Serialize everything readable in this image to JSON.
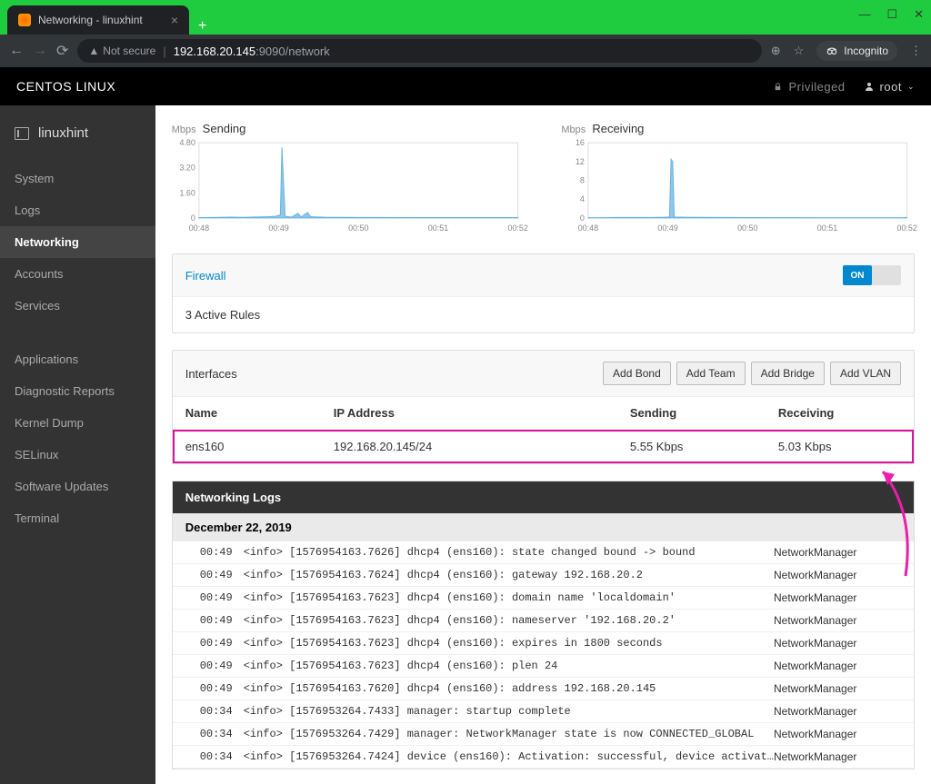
{
  "browser": {
    "tab_title": "Networking - linuxhint",
    "url_warning": "Not secure",
    "url_host": "192.168.20.145",
    "url_path": ":9090/network",
    "incognito_label": "Incognito"
  },
  "header": {
    "brand": "CENTOS LINUX",
    "privileged": "Privileged",
    "user": "root"
  },
  "sidebar": {
    "hostname": "linuxhint",
    "items_a": [
      "System",
      "Logs",
      "Networking",
      "Accounts",
      "Services"
    ],
    "items_b": [
      "Applications",
      "Diagnostic Reports",
      "Kernel Dump",
      "SELinux",
      "Software Updates",
      "Terminal"
    ],
    "active": "Networking"
  },
  "charts": {
    "sending": {
      "unit": "Mbps",
      "title": "Sending",
      "ymax": 4.8,
      "ytick_step": 1.6,
      "yticks": [
        "4.80",
        "3.20",
        "1.60",
        "0"
      ],
      "xticks": [
        "00:48",
        "00:49",
        "00:50",
        "00:51",
        "00:52"
      ],
      "line_color": "#66b3e2",
      "fill_color": "#8fc6ea",
      "bg": "#ffffff",
      "grid": "#dddddd",
      "points": [
        {
          "t": 0.0,
          "v": 0.02
        },
        {
          "t": 0.05,
          "v": 0.03
        },
        {
          "t": 0.1,
          "v": 0.05
        },
        {
          "t": 0.14,
          "v": 0.04
        },
        {
          "t": 0.18,
          "v": 0.06
        },
        {
          "t": 0.22,
          "v": 0.08
        },
        {
          "t": 0.24,
          "v": 0.1
        },
        {
          "t": 0.255,
          "v": 0.2
        },
        {
          "t": 0.26,
          "v": 4.5
        },
        {
          "t": 0.27,
          "v": 0.1
        },
        {
          "t": 0.29,
          "v": 0.05
        },
        {
          "t": 0.31,
          "v": 0.3
        },
        {
          "t": 0.32,
          "v": 0.06
        },
        {
          "t": 0.34,
          "v": 0.35
        },
        {
          "t": 0.35,
          "v": 0.08
        },
        {
          "t": 0.4,
          "v": 0.04
        },
        {
          "t": 0.5,
          "v": 0.03
        },
        {
          "t": 0.7,
          "v": 0.02
        },
        {
          "t": 1.0,
          "v": 0.02
        }
      ]
    },
    "receiving": {
      "unit": "Mbps",
      "title": "Receiving",
      "ymax": 16,
      "ytick_step": 4,
      "yticks": [
        "16",
        "12",
        "8",
        "4",
        "0"
      ],
      "xticks": [
        "00:48",
        "00:49",
        "00:50",
        "00:51",
        "00:52"
      ],
      "line_color": "#66b3e2",
      "fill_color": "#8fc6ea",
      "bg": "#ffffff",
      "grid": "#dddddd",
      "points": [
        {
          "t": 0.0,
          "v": 0.05
        },
        {
          "t": 0.05,
          "v": 0.05
        },
        {
          "t": 0.1,
          "v": 0.1
        },
        {
          "t": 0.15,
          "v": 0.1
        },
        {
          "t": 0.2,
          "v": 0.1
        },
        {
          "t": 0.24,
          "v": 0.15
        },
        {
          "t": 0.255,
          "v": 0.2
        },
        {
          "t": 0.26,
          "v": 12.5
        },
        {
          "t": 0.265,
          "v": 12.0
        },
        {
          "t": 0.27,
          "v": 0.2
        },
        {
          "t": 0.3,
          "v": 0.15
        },
        {
          "t": 0.35,
          "v": 0.12
        },
        {
          "t": 0.5,
          "v": 0.08
        },
        {
          "t": 0.7,
          "v": 0.05
        },
        {
          "t": 1.0,
          "v": 0.05
        }
      ]
    }
  },
  "firewall": {
    "title": "Firewall",
    "toggle": "ON",
    "rules_text": "3 Active Rules"
  },
  "interfaces": {
    "title": "Interfaces",
    "buttons": [
      "Add Bond",
      "Add Team",
      "Add Bridge",
      "Add VLAN"
    ],
    "columns": [
      "Name",
      "IP Address",
      "Sending",
      "Receiving"
    ],
    "rows": [
      {
        "name": "ens160",
        "ip": "192.168.20.145/24",
        "sending": "5.55 Kbps",
        "receiving": "5.03 Kbps",
        "highlight": true
      }
    ]
  },
  "logs": {
    "title": "Networking Logs",
    "date": "December 22, 2019",
    "entries": [
      {
        "time": "00:49",
        "msg": "<info> [1576954163.7626] dhcp4 (ens160): state changed bound -> bound",
        "src": "NetworkManager"
      },
      {
        "time": "00:49",
        "msg": "<info> [1576954163.7624] dhcp4 (ens160): gateway 192.168.20.2",
        "src": "NetworkManager"
      },
      {
        "time": "00:49",
        "msg": "<info> [1576954163.7623] dhcp4 (ens160): domain name 'localdomain'",
        "src": "NetworkManager"
      },
      {
        "time": "00:49",
        "msg": "<info> [1576954163.7623] dhcp4 (ens160): nameserver '192.168.20.2'",
        "src": "NetworkManager"
      },
      {
        "time": "00:49",
        "msg": "<info> [1576954163.7623] dhcp4 (ens160): expires in 1800 seconds",
        "src": "NetworkManager"
      },
      {
        "time": "00:49",
        "msg": "<info> [1576954163.7623] dhcp4 (ens160): plen 24",
        "src": "NetworkManager"
      },
      {
        "time": "00:49",
        "msg": "<info> [1576954163.7620] dhcp4 (ens160): address 192.168.20.145",
        "src": "NetworkManager"
      },
      {
        "time": "00:34",
        "msg": "<info> [1576953264.7433] manager: startup complete",
        "src": "NetworkManager"
      },
      {
        "time": "00:34",
        "msg": "<info> [1576953264.7429] manager: NetworkManager state is now CONNECTED_GLOBAL",
        "src": "NetworkManager"
      },
      {
        "time": "00:34",
        "msg": "<info> [1576953264.7424] device (ens160): Activation: successful, device activat…",
        "src": "NetworkManager"
      }
    ]
  },
  "annotation": {
    "arrow_color": "#e91eac"
  }
}
